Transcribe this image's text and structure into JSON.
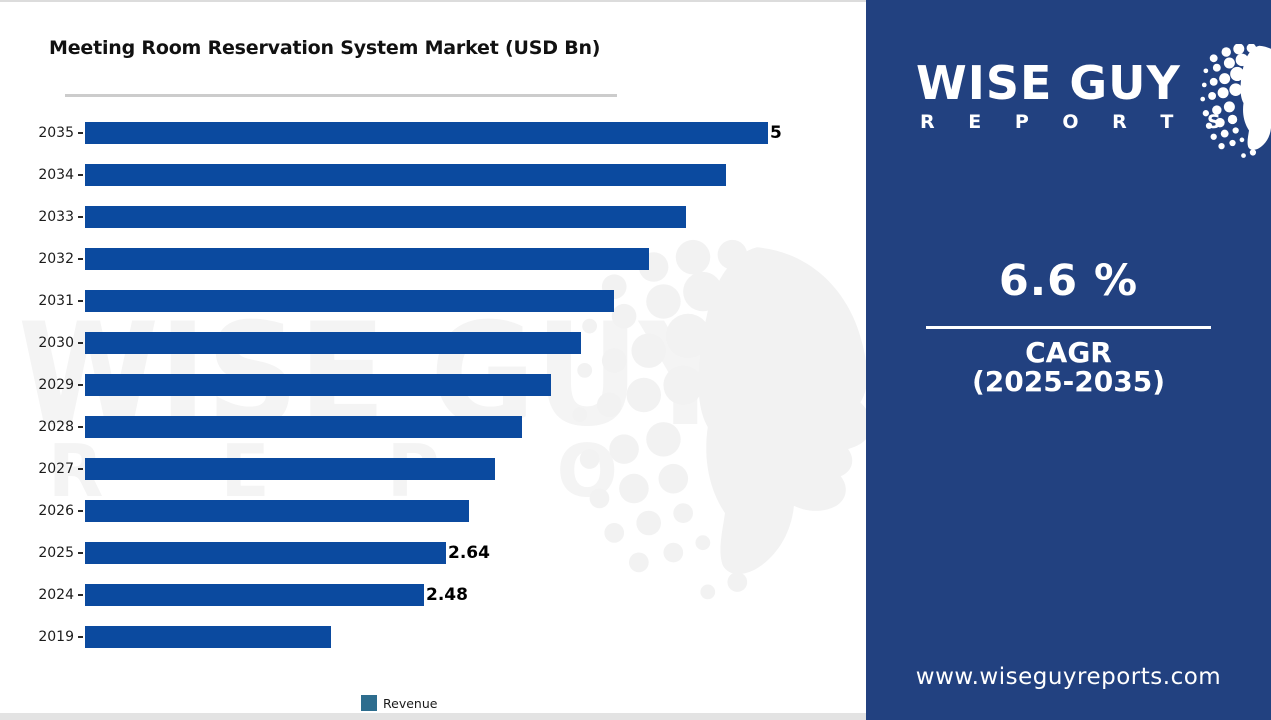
{
  "title": "Meeting Room Reservation System Market (USD Bn)",
  "chart_data": {
    "type": "bar",
    "orientation": "horizontal",
    "title": "Meeting Room Reservation System Market (USD Bn)",
    "unit": "USD Bn",
    "xlim": [
      0,
      5.72
    ],
    "grid": false,
    "legend_position": "bottom",
    "categories": [
      "2035",
      "2034",
      "2033",
      "2032",
      "2031",
      "2030",
      "2029",
      "2028",
      "2027",
      "2026",
      "2025",
      "2024",
      "2019"
    ],
    "series": [
      {
        "name": "Revenue",
        "values": [
          5.0,
          4.69,
          4.4,
          4.13,
          3.87,
          3.63,
          3.41,
          3.2,
          3.0,
          2.81,
          2.64,
          2.48,
          1.8
        ],
        "visible_value_labels": {
          "2035": "5",
          "2025": "2.64",
          "2024": "2.48"
        }
      }
    ],
    "bar_color": "#0b4a9f"
  },
  "legend": {
    "label": "Revenue",
    "swatch_color": "#2d6d8e"
  },
  "panel": {
    "background_color": "#224180",
    "logo_line1": "WISE GUY",
    "logo_line2": "R E P O R T S",
    "cagr_value": "6.6 %",
    "cagr_line1": "CAGR",
    "cagr_line2": "(2025-2035)",
    "website": "www.wiseguyreports.com"
  },
  "watermark": {
    "line1": "WISE GUY",
    "line2": "R E P O R T S"
  }
}
